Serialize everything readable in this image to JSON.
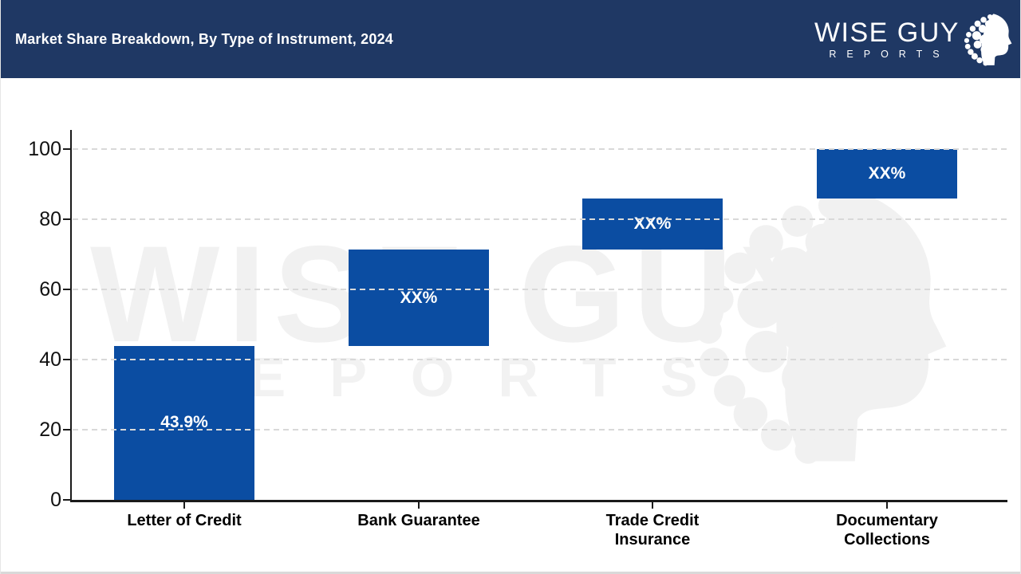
{
  "header": {
    "title": "Market Share Breakdown, By Type of Instrument, 2024"
  },
  "logo": {
    "line1": "WISE GUY",
    "line2": "REPORTS"
  },
  "watermark": {
    "line1": "WISE GUY",
    "line2": "REPORTS"
  },
  "colors": {
    "header_bg": "#1f3864",
    "bar": "#0b4da2",
    "bar_label": "#ffffff",
    "axis": "#1a1a1a",
    "grid": "#d9d9d9",
    "watermark": "#f1f1f1"
  },
  "chart_data": {
    "type": "bar",
    "subtype": "waterfall",
    "title": "Market Share Breakdown, By Type of Instrument, 2024",
    "categories": [
      "Letter of Credit",
      "Bank Guarantee",
      "Trade Credit\nInsurance",
      "Documentary\nCollections"
    ],
    "segments": [
      {
        "category": "Letter of Credit",
        "start": 0,
        "end": 43.9,
        "label": "43.9%"
      },
      {
        "category": "Bank Guarantee",
        "start": 43.9,
        "end": 71.3,
        "label": "XX%"
      },
      {
        "category": "Trade Credit Insurance",
        "start": 71.3,
        "end": 85.9,
        "label": "XX%"
      },
      {
        "category": "Documentary Collections",
        "start": 85.9,
        "end": 100,
        "label": "XX%"
      }
    ],
    "yticks": [
      0,
      20,
      40,
      60,
      80,
      100
    ],
    "ylim": [
      0,
      105
    ],
    "xlabel": "",
    "ylabel": "",
    "grid": "horizontal-dashed",
    "legend": null
  }
}
